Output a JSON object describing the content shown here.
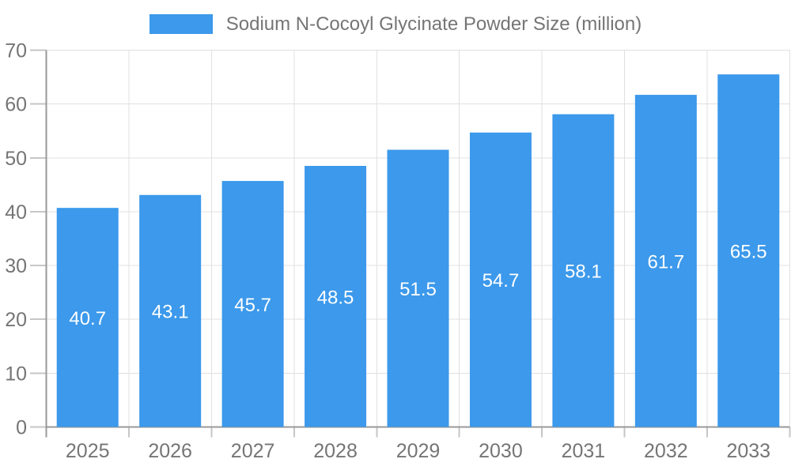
{
  "legend": {
    "label": "Sodium N-Cocoyl Glycinate Powder Size (million)"
  },
  "chart_data": {
    "type": "bar",
    "title": "Sodium N-Cocoyl Glycinate Powder Size (million)",
    "categories": [
      "2025",
      "2026",
      "2027",
      "2028",
      "2029",
      "2030",
      "2031",
      "2032",
      "2033"
    ],
    "values": [
      40.7,
      43.1,
      45.7,
      48.5,
      51.5,
      54.7,
      58.1,
      61.7,
      65.5
    ],
    "xlabel": "",
    "ylabel": "",
    "ylim": [
      0,
      70
    ],
    "ytick_step": 10,
    "yticks": [
      0,
      10,
      20,
      30,
      40,
      50,
      60,
      70
    ],
    "grid": true,
    "legend_position": "top",
    "value_labels": "inside-center",
    "colors": {
      "bar": "#3C99EB",
      "value_label": "#FFFFFF",
      "axis_text": "#757575",
      "grid": "#E0E0E0",
      "axis_line": "#999999",
      "tick": "#C6C6C6",
      "background": "#FFFFFF"
    }
  }
}
